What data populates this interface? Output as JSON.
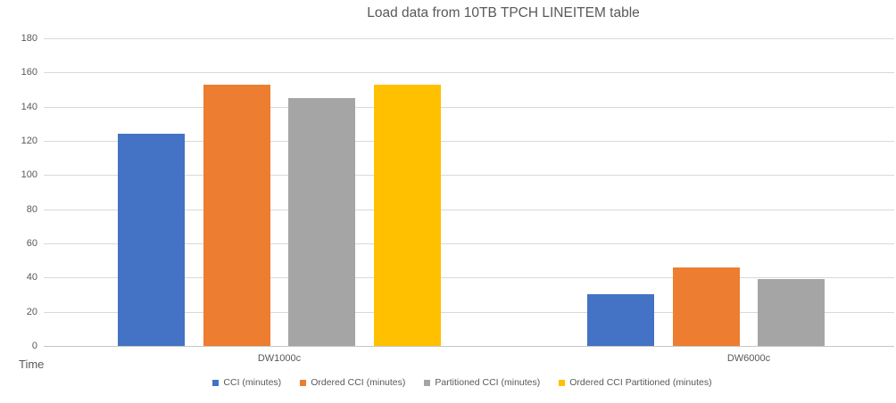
{
  "chart_data": {
    "type": "bar",
    "title": "Load data from 10TB TPCH LINEITEM table",
    "categories": [
      "DW1000c",
      "DW6000c"
    ],
    "series": [
      {
        "name": "CCI (minutes)",
        "color": "#4472C4",
        "values": [
          124,
          30
        ]
      },
      {
        "name": "Ordered CCI (minutes)",
        "color": "#ED7D31",
        "values": [
          153,
          46
        ]
      },
      {
        "name": "Partitioned CCI (minutes)",
        "color": "#A5A5A5",
        "values": [
          145,
          39
        ]
      },
      {
        "name": "Ordered CCI Partitioned (minutes)",
        "color": "#FFC000",
        "values": [
          153,
          null
        ]
      }
    ],
    "xlabel": "",
    "ylabel": "Time",
    "ylim": [
      0,
      180
    ],
    "y_ticks": [
      0,
      20,
      40,
      60,
      80,
      100,
      120,
      140,
      160,
      180
    ],
    "grid": true,
    "legend_position": "bottom"
  }
}
